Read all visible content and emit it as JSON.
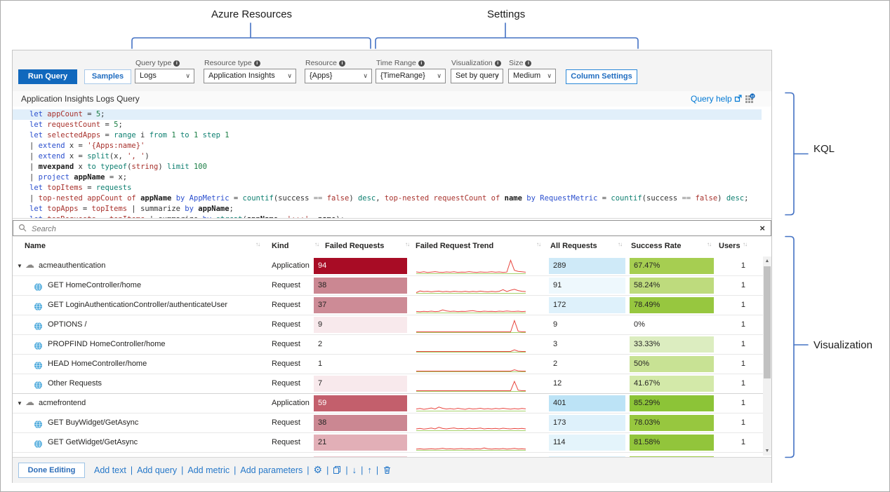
{
  "annotations": {
    "azure_resources": "Azure Resources",
    "settings": "Settings",
    "kql": "KQL",
    "visualization": "Visualization"
  },
  "toolbar": {
    "run_query_label": "Run Query",
    "samples_label": "Samples",
    "column_settings_label": "Column Settings",
    "fields": [
      {
        "label": "Query type",
        "value": "Logs"
      },
      {
        "label": "Resource type",
        "value": "Application Insights"
      },
      {
        "label": "Resource",
        "value": "{Apps}"
      },
      {
        "label": "Time Range",
        "value": "{TimeRange}"
      },
      {
        "label": "Visualization",
        "value": "Set by query"
      },
      {
        "label": "Size",
        "value": "Medium"
      }
    ]
  },
  "query_section": {
    "title": "Application Insights Logs Query",
    "help_label": "Query help",
    "code_lines": [
      [
        [
          "k",
          "let"
        ],
        [
          "p",
          " "
        ],
        [
          "r",
          "appCount"
        ],
        [
          "p",
          " = "
        ],
        [
          "n",
          "5"
        ],
        [
          "p",
          ";"
        ]
      ],
      [
        [
          "k",
          "let"
        ],
        [
          "p",
          " "
        ],
        [
          "r",
          "requestCount"
        ],
        [
          "p",
          " = "
        ],
        [
          "n",
          "5"
        ],
        [
          "p",
          ";"
        ]
      ],
      [
        [
          "k",
          "let"
        ],
        [
          "p",
          " "
        ],
        [
          "r",
          "selectedApps"
        ],
        [
          "p",
          " = "
        ],
        [
          "f",
          "range"
        ],
        [
          "p",
          " i "
        ],
        [
          "f",
          "from"
        ],
        [
          "p",
          " "
        ],
        [
          "n",
          "1"
        ],
        [
          "p",
          " "
        ],
        [
          "f",
          "to"
        ],
        [
          "p",
          " "
        ],
        [
          "n",
          "1"
        ],
        [
          "p",
          " "
        ],
        [
          "f",
          "step"
        ],
        [
          "p",
          " "
        ],
        [
          "n",
          "1"
        ]
      ],
      [
        [
          "p",
          "| "
        ],
        [
          "k",
          "extend"
        ],
        [
          "p",
          " x = "
        ],
        [
          "r",
          "'{Apps:name}'"
        ]
      ],
      [
        [
          "p",
          "| "
        ],
        [
          "k",
          "extend"
        ],
        [
          "p",
          " x = "
        ],
        [
          "f",
          "split"
        ],
        [
          "p",
          "(x, "
        ],
        [
          "r",
          "', '"
        ],
        [
          "p",
          ")"
        ]
      ],
      [
        [
          "p",
          "| "
        ],
        [
          "b",
          "mvexpand"
        ],
        [
          "p",
          " x "
        ],
        [
          "f",
          "to"
        ],
        [
          "p",
          " "
        ],
        [
          "f",
          "typeof"
        ],
        [
          "p",
          "("
        ],
        [
          "r",
          "string"
        ],
        [
          "p",
          ") "
        ],
        [
          "f",
          "limit"
        ],
        [
          "p",
          " "
        ],
        [
          "n",
          "100"
        ]
      ],
      [
        [
          "p",
          "| "
        ],
        [
          "k",
          "project"
        ],
        [
          "p",
          " "
        ],
        [
          "b",
          "appName"
        ],
        [
          "p",
          " = x;"
        ]
      ],
      [
        [
          "k",
          "let"
        ],
        [
          "p",
          " "
        ],
        [
          "r",
          "topItems"
        ],
        [
          "p",
          " = "
        ],
        [
          "f",
          "requests"
        ]
      ],
      [
        [
          "p",
          "| "
        ],
        [
          "r",
          "top-nested"
        ],
        [
          "p",
          " "
        ],
        [
          "r",
          "appCount"
        ],
        [
          "p",
          " "
        ],
        [
          "r",
          "of"
        ],
        [
          "p",
          " "
        ],
        [
          "b",
          "appName"
        ],
        [
          "p",
          " "
        ],
        [
          "k",
          "by"
        ],
        [
          "p",
          " "
        ],
        [
          "k",
          "AppMetric"
        ],
        [
          "p",
          " = "
        ],
        [
          "f",
          "countif"
        ],
        [
          "p",
          "(success "
        ],
        [
          "o",
          "=="
        ],
        [
          "p",
          " "
        ],
        [
          "r",
          "false"
        ],
        [
          "p",
          ") "
        ],
        [
          "f",
          "desc"
        ],
        [
          "p",
          ", "
        ],
        [
          "r",
          "top-nested"
        ],
        [
          "p",
          " "
        ],
        [
          "r",
          "requestCount"
        ],
        [
          "p",
          " "
        ],
        [
          "r",
          "of"
        ],
        [
          "p",
          " "
        ],
        [
          "b",
          "name"
        ],
        [
          "p",
          " "
        ],
        [
          "k",
          "by"
        ],
        [
          "p",
          " "
        ],
        [
          "k",
          "RequestMetric"
        ],
        [
          "p",
          " = "
        ],
        [
          "f",
          "countif"
        ],
        [
          "p",
          "(success "
        ],
        [
          "o",
          "=="
        ],
        [
          "p",
          " "
        ],
        [
          "r",
          "false"
        ],
        [
          "p",
          ") "
        ],
        [
          "f",
          "desc"
        ],
        [
          "p",
          ";"
        ]
      ],
      [
        [
          "k",
          "let"
        ],
        [
          "p",
          " "
        ],
        [
          "r",
          "topApps"
        ],
        [
          "p",
          " = "
        ],
        [
          "r",
          "topItems"
        ],
        [
          "p",
          " | summarize "
        ],
        [
          "k",
          "by"
        ],
        [
          "p",
          " "
        ],
        [
          "b",
          "appName"
        ],
        [
          "p",
          ";"
        ]
      ],
      [
        [
          "k",
          "let"
        ],
        [
          "p",
          " "
        ],
        [
          "r",
          "topRequests"
        ],
        [
          "p",
          " = "
        ],
        [
          "r",
          "topItems"
        ],
        [
          "p",
          " | summarize "
        ],
        [
          "k",
          "by"
        ],
        [
          "p",
          " "
        ],
        [
          "f",
          "strcat"
        ],
        [
          "p",
          "("
        ],
        [
          "b",
          "appName"
        ],
        [
          "p",
          ", "
        ],
        [
          "r",
          "':::'"
        ],
        [
          "p",
          ", "
        ],
        [
          "b",
          "name"
        ],
        [
          "p",
          ");"
        ]
      ]
    ]
  },
  "table": {
    "search_placeholder": "Search",
    "columns": [
      "Name",
      "Kind",
      "Failed Requests",
      "Failed Request Trend",
      "All Requests",
      "Success Rate",
      "Users"
    ],
    "rows": [
      {
        "name": "acmeauthentication",
        "kind": "Application",
        "failed": "94",
        "failed_bg": "#a80c25",
        "failed_fg": "#ffffff",
        "all": "289",
        "all_bg": "#cfeaf8",
        "rate": "67.47%",
        "rate_bg": "#a6ce51",
        "users": "1",
        "trend": [
          8,
          5,
          9,
          4,
          7,
          10,
          6,
          5,
          8,
          6,
          9,
          5,
          7,
          6,
          10,
          7,
          5,
          8,
          6,
          7,
          9,
          6,
          8,
          5,
          7,
          95,
          20,
          12,
          9,
          6
        ]
      },
      {
        "name": "GET HomeController/home",
        "kind": "Request",
        "failed": "38",
        "failed_bg": "#cb8792",
        "failed_fg": "#252423",
        "all": "91",
        "all_bg": "#eef8fd",
        "rate": "58.24%",
        "rate_bg": "#bedb7d",
        "users": "1",
        "trend": [
          0,
          12,
          8,
          10,
          6,
          9,
          11,
          7,
          9,
          6,
          10,
          8,
          7,
          10,
          6,
          9,
          7,
          11,
          8,
          6,
          9,
          7,
          10,
          22,
          8,
          18,
          25,
          15,
          10,
          8
        ]
      },
      {
        "name": "GET LoginAuthenticationController/authenticateUser",
        "kind": "Request",
        "failed": "37",
        "failed_bg": "#cd8b96",
        "failed_fg": "#252423",
        "all": "172",
        "all_bg": "#def1fb",
        "rate": "78.49%",
        "rate_bg": "#97c73f",
        "users": "1",
        "trend": [
          6,
          4,
          7,
          5,
          8,
          5,
          7,
          18,
          10,
          6,
          8,
          5,
          7,
          6,
          9,
          12,
          7,
          5,
          8,
          6,
          7,
          5,
          8,
          6,
          9,
          7,
          6,
          8,
          5,
          7
        ]
      },
      {
        "name": "OPTIONS /",
        "kind": "Request",
        "failed": "9",
        "failed_bg": "#f8e9ec",
        "failed_fg": "#252423",
        "all": "9",
        "all_bg": "",
        "rate": "0%",
        "rate_bg": "",
        "users": "1",
        "trend": [
          0,
          0,
          0,
          0,
          0,
          0,
          0,
          0,
          0,
          0,
          0,
          0,
          0,
          0,
          0,
          0,
          0,
          0,
          0,
          0,
          0,
          0,
          0,
          0,
          0,
          0,
          85,
          5,
          0,
          0
        ]
      },
      {
        "name": "PROPFIND HomeController/home",
        "kind": "Request",
        "failed": "2",
        "failed_bg": "",
        "failed_fg": "#252423",
        "all": "3",
        "all_bg": "",
        "rate": "33.33%",
        "rate_bg": "#dcedc0",
        "users": "1",
        "trend": [
          0,
          0,
          0,
          0,
          0,
          0,
          0,
          0,
          0,
          0,
          0,
          0,
          0,
          0,
          0,
          0,
          0,
          0,
          0,
          0,
          0,
          0,
          0,
          0,
          0,
          0,
          12,
          2,
          0,
          0
        ]
      },
      {
        "name": "HEAD HomeController/home",
        "kind": "Request",
        "failed": "1",
        "failed_bg": "",
        "failed_fg": "#252423",
        "all": "2",
        "all_bg": "",
        "rate": "50%",
        "rate_bg": "#c8e294",
        "users": "1",
        "trend": [
          0,
          0,
          0,
          0,
          0,
          0,
          0,
          0,
          0,
          0,
          0,
          0,
          0,
          0,
          0,
          0,
          0,
          0,
          0,
          0,
          0,
          0,
          0,
          0,
          0,
          0,
          10,
          2,
          0,
          0
        ]
      },
      {
        "name": "Other Requests",
        "kind": "Request",
        "failed": "7",
        "failed_bg": "#f8e9ec",
        "failed_fg": "#252423",
        "all": "12",
        "all_bg": "",
        "rate": "41.67%",
        "rate_bg": "#d3e9a9",
        "users": "1",
        "trend": [
          0,
          0,
          0,
          0,
          0,
          0,
          0,
          0,
          0,
          0,
          0,
          0,
          0,
          0,
          0,
          0,
          0,
          0,
          0,
          0,
          0,
          0,
          0,
          0,
          0,
          0,
          70,
          4,
          0,
          0
        ]
      },
      {
        "name": "acmefrontend",
        "kind": "Application",
        "failed": "59",
        "failed_bg": "#c35f6c",
        "failed_fg": "#ffffff",
        "all": "401",
        "all_bg": "#bce3f6",
        "rate": "85.29%",
        "rate_bg": "#8cc437",
        "users": "1",
        "trend": [
          10,
          14,
          8,
          12,
          18,
          10,
          25,
          15,
          10,
          13,
          9,
          16,
          11,
          8,
          14,
          10,
          12,
          16,
          10,
          13,
          9,
          14,
          11,
          16,
          12,
          9,
          13,
          10,
          14,
          11
        ]
      },
      {
        "name": "GET BuyWidget/GetAsync",
        "kind": "Request",
        "failed": "38",
        "failed_bg": "#cb8792",
        "failed_fg": "#252423",
        "all": "173",
        "all_bg": "#def1fb",
        "rate": "78.03%",
        "rate_bg": "#97c73f",
        "users": "1",
        "trend": [
          8,
          12,
          7,
          10,
          14,
          8,
          20,
          11,
          8,
          12,
          15,
          9,
          11,
          8,
          13,
          9,
          11,
          14,
          8,
          11,
          9,
          12,
          8,
          13,
          10,
          8,
          11,
          9,
          12,
          8
        ]
      },
      {
        "name": "GET GetWidget/GetAsync",
        "kind": "Request",
        "failed": "21",
        "failed_bg": "#e2afb7",
        "failed_fg": "#252423",
        "all": "114",
        "all_bg": "#e4f4fb",
        "rate": "81.58%",
        "rate_bg": "#92c53b",
        "users": "1",
        "trend": [
          4,
          6,
          3,
          5,
          7,
          4,
          6,
          10,
          5,
          7,
          4,
          6,
          8,
          5,
          6,
          4,
          7,
          5,
          12,
          6,
          4,
          7,
          5,
          8,
          4,
          6,
          9,
          5,
          6,
          4
        ]
      }
    ],
    "partial_row": {
      "failed_bg": "#edccd2",
      "all_bg": "#dff2fb",
      "rate_bg": "#a5ce50"
    }
  },
  "footer": {
    "done_label": "Done Editing",
    "links": [
      "Add text",
      "Add query",
      "Add metric",
      "Add parameters"
    ]
  },
  "colors": {
    "accent": "#0078d4",
    "bracket_blue": "#4472c4",
    "run_query_bg": "#1168bd",
    "trend_red": "#e8463e",
    "trend_green": "#a6d16b"
  }
}
